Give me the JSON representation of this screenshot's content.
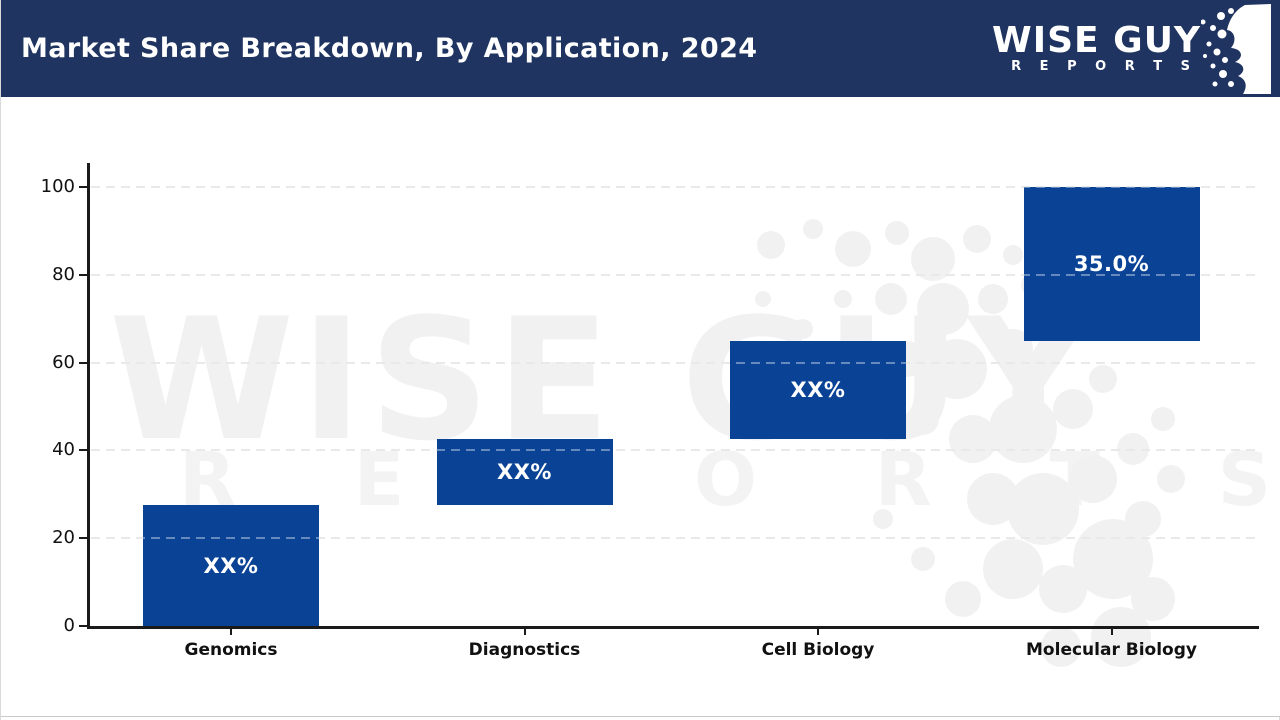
{
  "header": {
    "title": "Market Share Breakdown, By Application, 2024",
    "bg_color": "#1F3460",
    "logo": {
      "line1": "WISE GUY",
      "line2": "R E P O R T S"
    }
  },
  "watermark": {
    "line1": "WISE GUY",
    "line2": "R E P O R T S"
  },
  "chart_data": {
    "type": "bar",
    "subtype": "waterfall",
    "title": "Market Share Breakdown, By Application, 2024",
    "categories": [
      "Genomics",
      "Diagnostics",
      "Cell Biology",
      "Molecular Biology"
    ],
    "segments": [
      {
        "category": "Genomics",
        "start": 0,
        "end": 27.5,
        "label": "XX%"
      },
      {
        "category": "Diagnostics",
        "start": 27.5,
        "end": 42.5,
        "label": "XX%"
      },
      {
        "category": "Cell Biology",
        "start": 42.5,
        "end": 65,
        "label": "XX%"
      },
      {
        "category": "Molecular Biology",
        "start": 65,
        "end": 100,
        "label": "35.0%"
      }
    ],
    "yticks": [
      0,
      20,
      40,
      60,
      80,
      100
    ],
    "ylim": [
      0,
      105
    ],
    "xlabel": "",
    "ylabel": "",
    "grid": "dashed-horizontal",
    "legend": "none",
    "bar_color": "#0A4396",
    "bar_label_color": "#ffffff"
  }
}
